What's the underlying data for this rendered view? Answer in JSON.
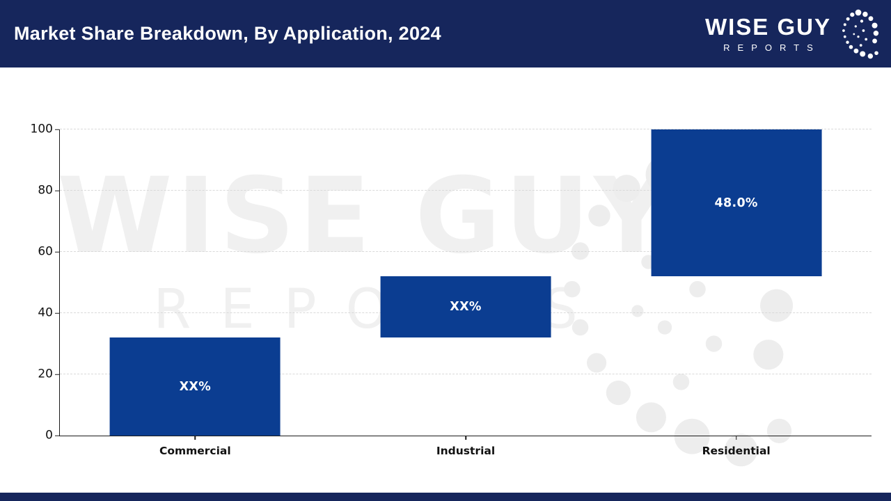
{
  "header": {
    "title": "Market Share Breakdown, By Application, 2024",
    "logo": {
      "line1": "WISE GUY",
      "line2": "REPORTS"
    }
  },
  "watermark": {
    "line1": "WISE GUY",
    "line2": "REPORTS"
  },
  "chart_data": {
    "type": "bar",
    "variant": "floating-waterfall",
    "title": "Market Share Breakdown, By Application, 2024",
    "categories": [
      "Commercial",
      "Industrial",
      "Residential"
    ],
    "segments": [
      {
        "category": "Commercial",
        "start": 0,
        "end": 32,
        "value": 32,
        "label": "XX%"
      },
      {
        "category": "Industrial",
        "start": 32,
        "end": 52,
        "value": 20,
        "label": "XX%"
      },
      {
        "category": "Residential",
        "start": 52,
        "end": 100,
        "value": 48,
        "label": "48.0%"
      }
    ],
    "yticks": [
      0,
      20,
      40,
      60,
      80,
      100
    ],
    "ylim": [
      0,
      100
    ],
    "xlabel": "",
    "ylabel": "",
    "grid": "horizontal-dashed",
    "legend": "none",
    "bar_color": "#0b3d91",
    "label_color": "#ffffff"
  },
  "colors": {
    "header_bg": "#16265c",
    "footer_bg": "#16265c",
    "bar": "#0b3d91",
    "grid": "#d9d9d9",
    "axis": "#1a1a1a",
    "watermark": "#f0f0f0"
  }
}
